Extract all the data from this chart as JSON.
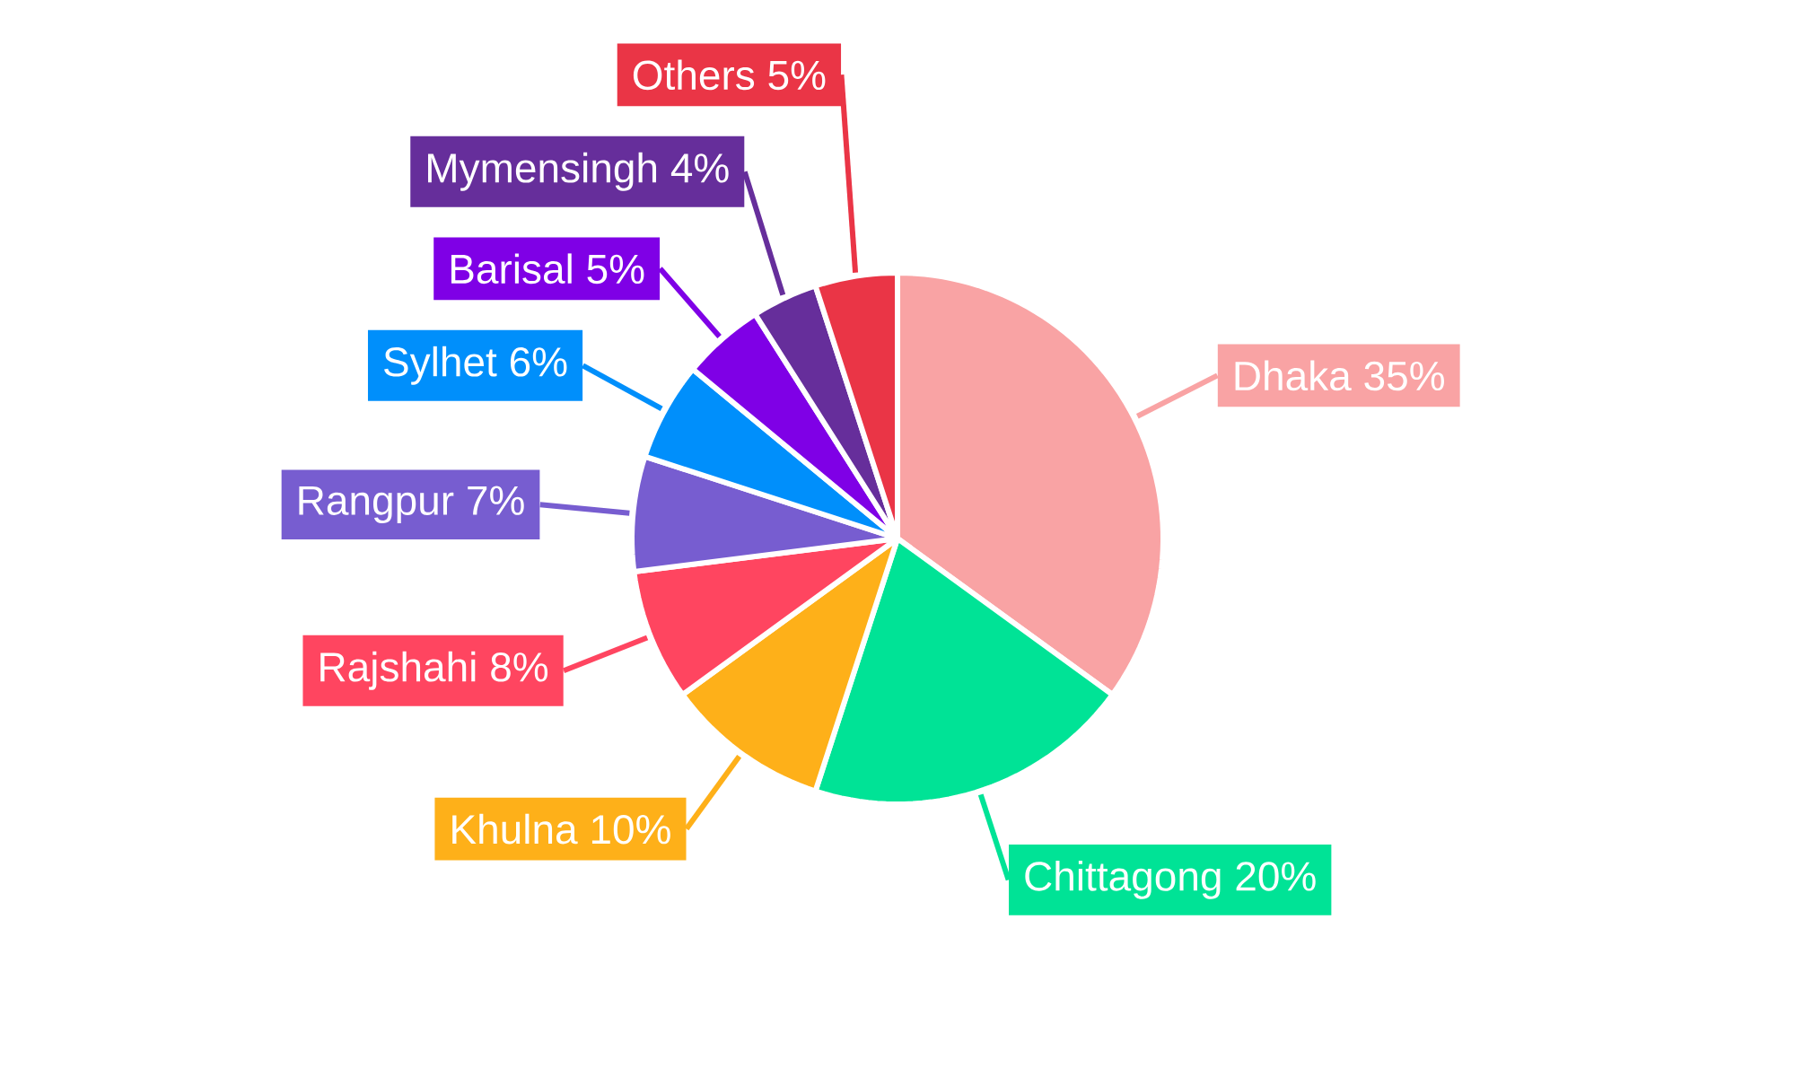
{
  "chart_data": {
    "type": "pie",
    "categories": [
      "Dhaka",
      "Chittagong",
      "Khulna",
      "Rajshahi",
      "Rangpur",
      "Sylhet",
      "Barisal",
      "Mymensingh",
      "Others"
    ],
    "values": [
      35,
      20,
      10,
      8,
      7,
      6,
      5,
      4,
      5
    ],
    "value_labels": [
      "35%",
      "20%",
      "10%",
      "8%",
      "7%",
      "6%",
      "5%",
      "4%",
      "5%"
    ],
    "colors": [
      "#f9a3a4",
      "#00e396",
      "#feb019",
      "#ff4560",
      "#775dd0",
      "#008ffb",
      "#7f00e6",
      "#662e9b",
      "#ea3546"
    ]
  }
}
